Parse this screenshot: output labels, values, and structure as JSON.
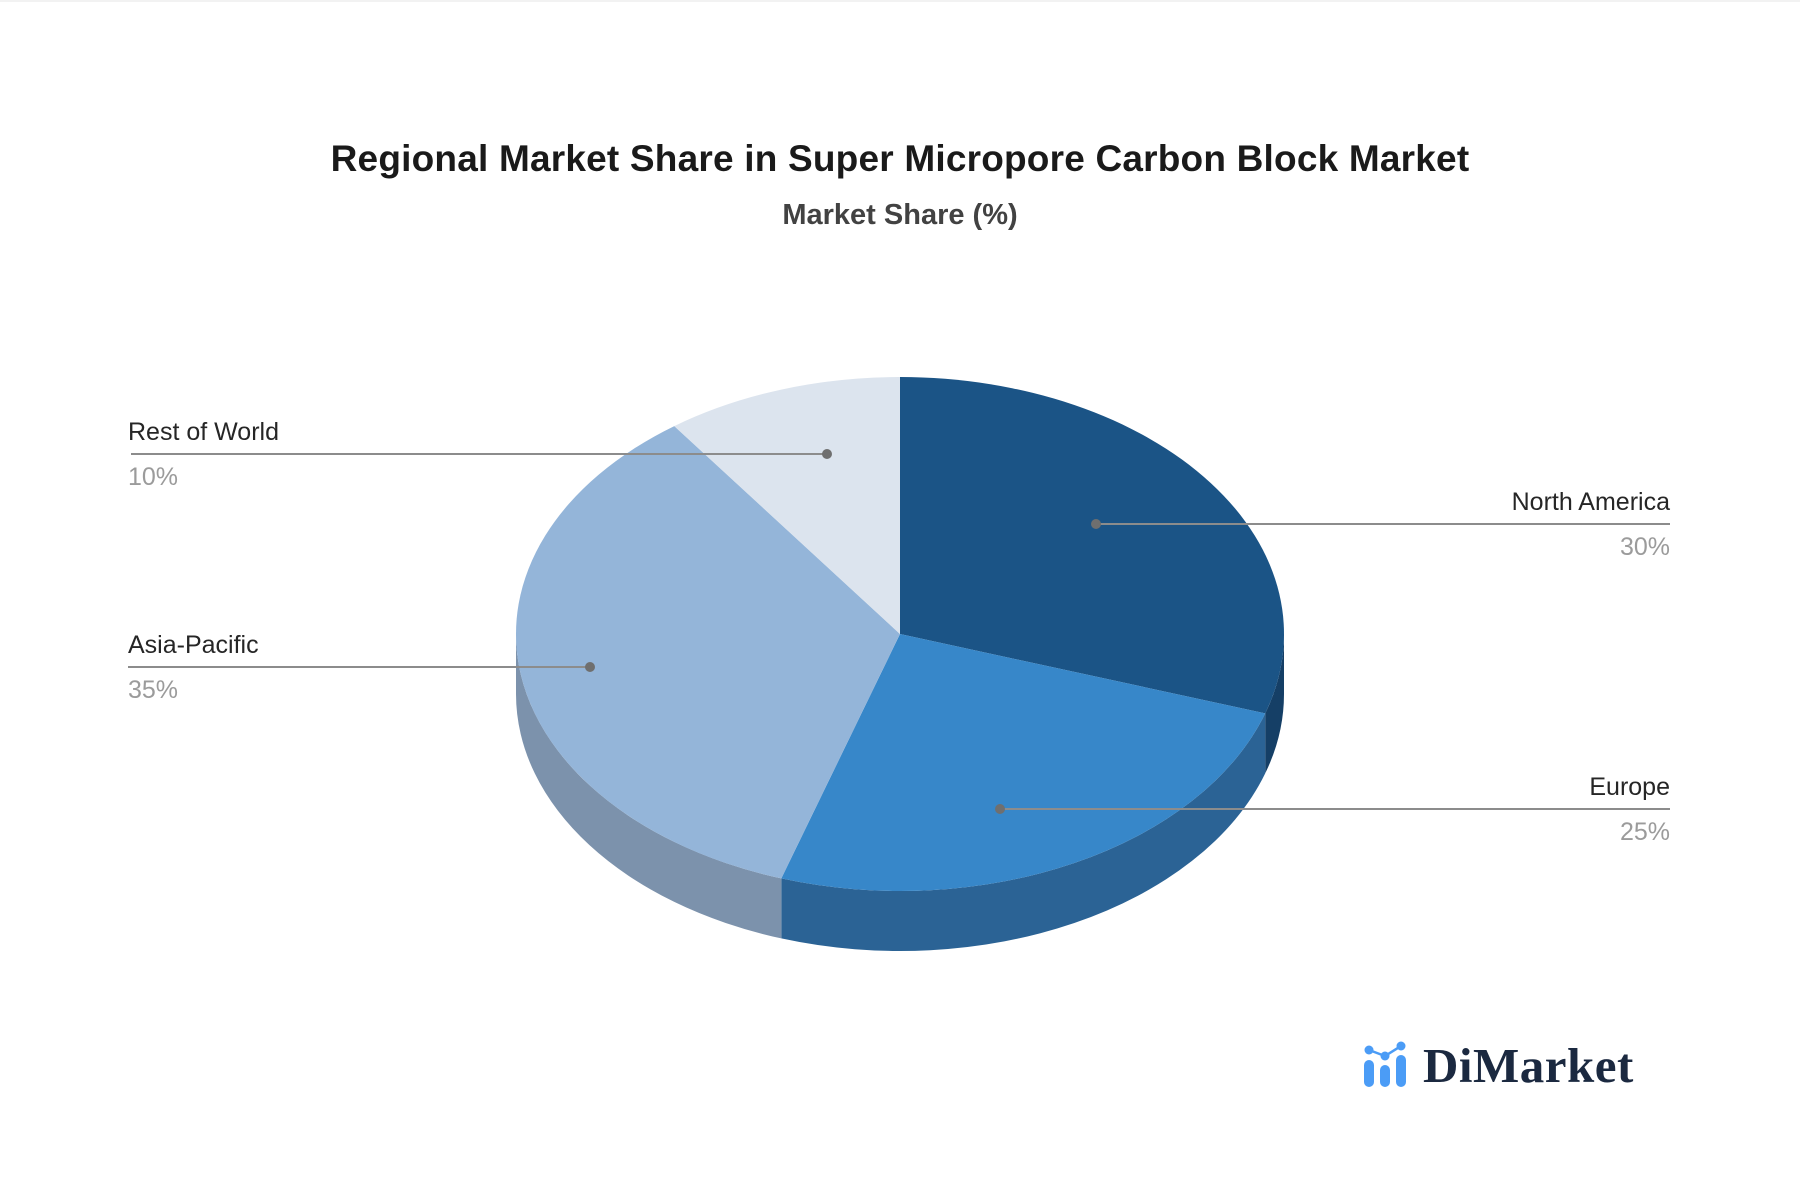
{
  "title": "Regional Market Share in Super Micropore Carbon Block Market",
  "subtitle": "Market Share (%)",
  "chart_data": {
    "type": "pie",
    "title": "Regional Market Share in Super Micropore Carbon Block Market",
    "subtitle": "Market Share (%)",
    "unit": "%",
    "style_3d": true,
    "start_angle_deg": 0,
    "direction": "clockwise",
    "legend_position": "none",
    "label_style": "outside-callout",
    "slices": [
      {
        "label": "North America",
        "value": 30,
        "pct_label": "30%",
        "color": "#1b5486",
        "side_color": "#153f66"
      },
      {
        "label": "Europe",
        "value": 25,
        "pct_label": "25%",
        "color": "#3787c9",
        "side_color": "#2b6395"
      },
      {
        "label": "Asia-Pacific",
        "value": 35,
        "pct_label": "35%",
        "color": "#94b5d9",
        "side_color": "#7c92ac"
      },
      {
        "label": "Rest of World",
        "value": 10,
        "pct_label": "10%",
        "color": "#dce4ee",
        "side_color": "#c2cddd"
      }
    ]
  },
  "style": {
    "leader_line_color": "#8c8c8c",
    "dot_color": "#6f6f6f",
    "label_text_color": "#262626",
    "pct_text_color": "#9b9b9b"
  },
  "logo": {
    "text": "DiMarket",
    "accent_color": "#4b9cf6",
    "text_color": "#1b2940"
  }
}
